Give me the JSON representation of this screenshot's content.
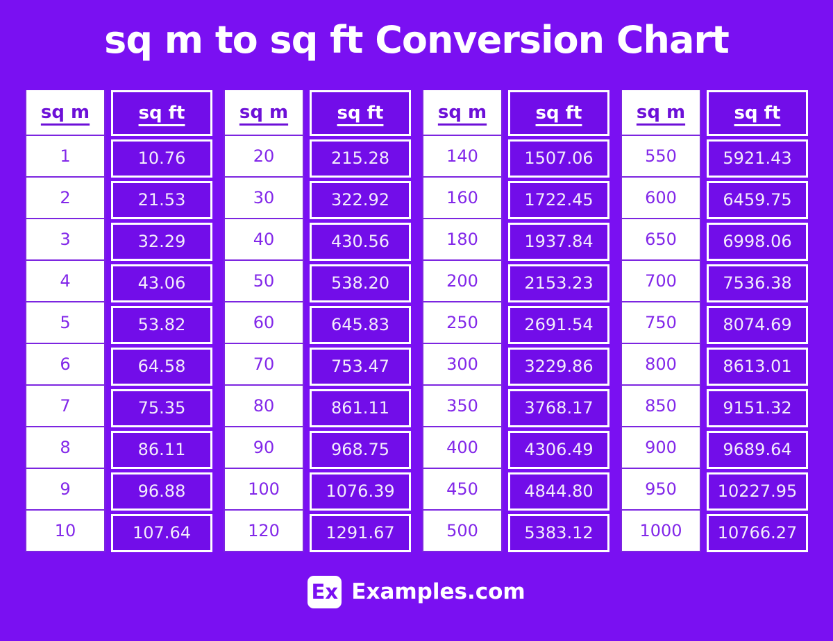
{
  "colors": {
    "page_background": "#7a10f2",
    "sqft_cell_background": "#720de9",
    "sqm_text": "#8227e9",
    "sqm_header_text": "#6d10d8",
    "sqm_separator": "#7c25e0",
    "sqft_text": "#f3ecfc",
    "title_text": "#ffffff"
  },
  "footer": {
    "logo_text": "Ex",
    "brand": "Examples.com"
  },
  "chart_data": {
    "type": "table",
    "title": "sq m to sq ft Conversion Chart",
    "columns": [
      "sq m",
      "sq ft"
    ],
    "tables": [
      {
        "sq_m": [
          1,
          2,
          3,
          4,
          5,
          6,
          7,
          8,
          9,
          10
        ],
        "sq_ft": [
          10.76,
          21.53,
          32.29,
          43.06,
          53.82,
          64.58,
          75.35,
          86.11,
          96.88,
          107.64
        ]
      },
      {
        "sq_m": [
          20,
          30,
          40,
          50,
          60,
          70,
          80,
          90,
          100,
          120
        ],
        "sq_ft": [
          215.28,
          322.92,
          430.56,
          538.2,
          645.83,
          753.47,
          861.11,
          968.75,
          1076.39,
          1291.67
        ]
      },
      {
        "sq_m": [
          140,
          160,
          180,
          200,
          250,
          300,
          350,
          400,
          450,
          500
        ],
        "sq_ft": [
          1507.06,
          1722.45,
          1937.84,
          2153.23,
          2691.54,
          3229.86,
          3768.17,
          4306.49,
          4844.8,
          5383.12
        ]
      },
      {
        "sq_m": [
          550,
          600,
          650,
          700,
          750,
          800,
          850,
          900,
          950,
          1000
        ],
        "sq_ft": [
          5921.43,
          6459.75,
          6998.06,
          7536.38,
          8074.69,
          8613.01,
          9151.32,
          9689.64,
          10227.95,
          10766.27
        ]
      }
    ]
  }
}
